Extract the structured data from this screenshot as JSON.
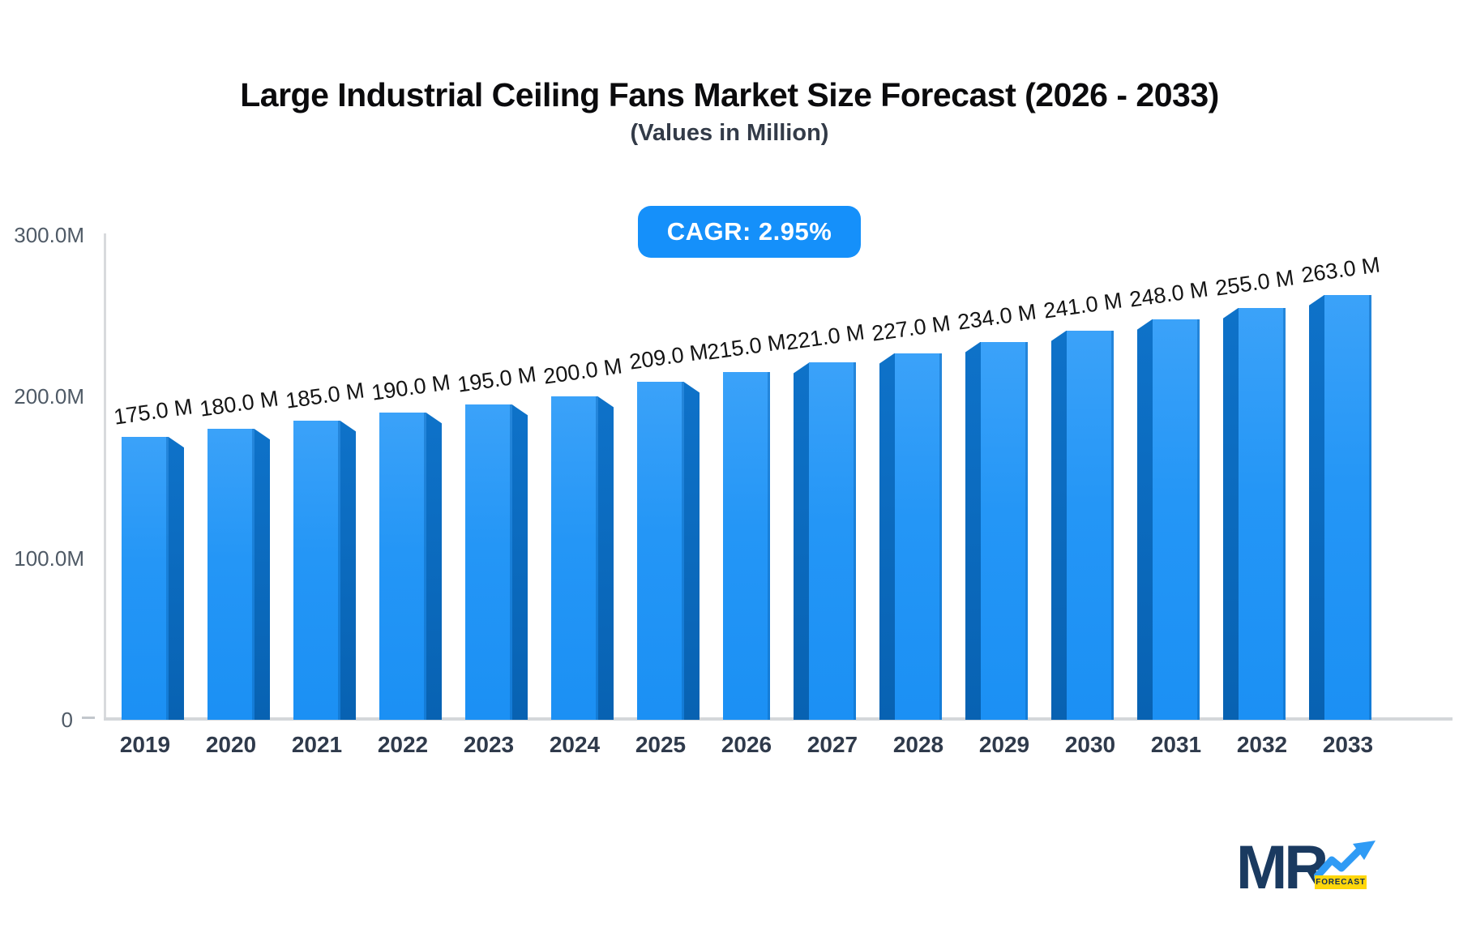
{
  "header": {
    "title": "Large Industrial Ceiling Fans Market Size Forecast (2026 - 2033)",
    "subtitle": "(Values in Million)",
    "cagr_badge": "CAGR: 2.95%"
  },
  "chart_data": {
    "type": "bar",
    "title": "Large Industrial Ceiling Fans Market Size Forecast (2026 - 2033)",
    "subtitle": "(Values in Million)",
    "unit": "Million",
    "categories": [
      "2019",
      "2020",
      "2021",
      "2022",
      "2023",
      "2024",
      "2025",
      "2026",
      "2027",
      "2028",
      "2029",
      "2030",
      "2031",
      "2032",
      "2033"
    ],
    "values": [
      175,
      180,
      185,
      190,
      195,
      200,
      209,
      215,
      221,
      227,
      234,
      241,
      248,
      255,
      263
    ],
    "value_labels": [
      "175.0 M",
      "180.0 M",
      "185.0 M",
      "190.0 M",
      "195.0 M",
      "200.0 M",
      "209.0 M",
      "215.0 M",
      "221.0 M",
      "227.0 M",
      "234.0 M",
      "241.0 M",
      "248.0 M",
      "255.0 M",
      "263.0 M"
    ],
    "ylim": [
      0,
      300
    ],
    "y_ticks": [
      {
        "label": "300.0M",
        "value": 300
      },
      {
        "label": "200.0M",
        "value": 200
      },
      {
        "label": "100.0M",
        "value": 100
      },
      {
        "label": "0",
        "value": 0
      }
    ],
    "grid": false,
    "legend": false,
    "bar_style": "3d-perspective",
    "colors": {
      "bar_front": "#2496f6",
      "bar_side": "#0b6bbd",
      "badge": "#1590fa",
      "axis": "#d4d7da",
      "value_label": "#141414",
      "x_tick": "#2f3a4b",
      "y_tick": "#4f5a66"
    }
  },
  "logo": {
    "text": "MR",
    "sub_label": "FORECAST",
    "arrow_icon": "trend-up-arrow",
    "colors": {
      "navy": "#1a3a60",
      "blue": "#2f9bf5",
      "yellow": "#ffd60b"
    }
  }
}
